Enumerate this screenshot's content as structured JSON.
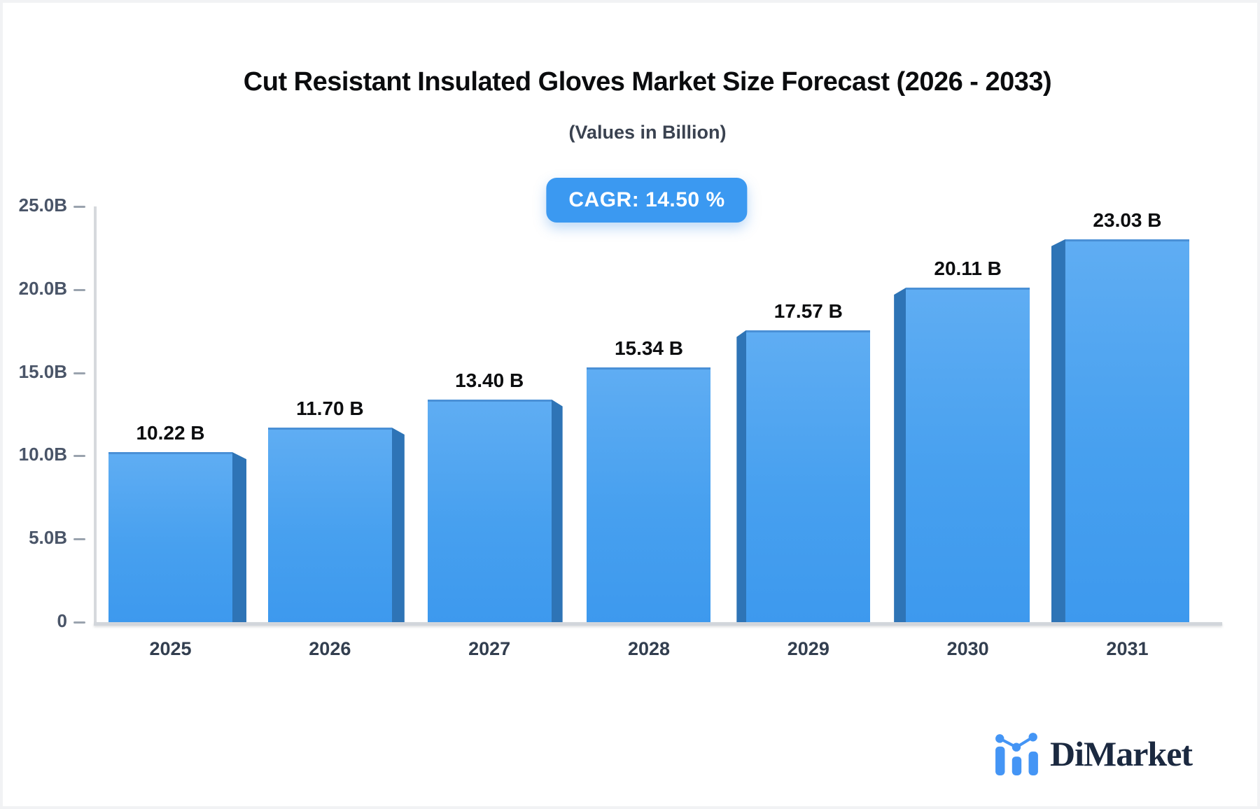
{
  "header": {
    "title": "Cut Resistant Insulated Gloves Market Size Forecast (2026 - 2033)",
    "subtitle": "(Values in Billion)",
    "cagr_badge": "CAGR: 14.50 %"
  },
  "chart_data": {
    "type": "bar",
    "title": "Cut Resistant Insulated Gloves Market Size Forecast (2026 - 2033)",
    "subtitle": "(Values in Billion)",
    "cagr_text": "CAGR: 14.50 %",
    "categories": [
      "2025",
      "2026",
      "2027",
      "2028",
      "2029",
      "2030",
      "2031"
    ],
    "values": [
      10.22,
      11.7,
      13.4,
      15.34,
      17.57,
      20.11,
      23.03
    ],
    "value_labels": [
      "10.22 B",
      "11.70 B",
      "13.40 B",
      "15.34 B",
      "17.57 B",
      "20.11 B",
      "23.03 B"
    ],
    "unit": "Billion",
    "y_ticks": [
      {
        "label": "25.0B",
        "value": 25
      },
      {
        "label": "20.0B",
        "value": 20
      },
      {
        "label": "15.0B",
        "value": 15
      },
      {
        "label": "10.0B",
        "value": 10
      },
      {
        "label": "5.0B",
        "value": 5
      },
      {
        "label": "0",
        "value": 0
      }
    ],
    "ylim": [
      0,
      25
    ],
    "grid": false,
    "legend": false,
    "bar_style": "3d",
    "colors": {
      "bar_face_top": "#5FADF3",
      "bar_face_bottom": "#3D99EE",
      "bar_top_edge": "#4A90D6",
      "bar_side": "#2E74B6",
      "axis_line": "#D6D9DD",
      "tick_label": "#4A5568",
      "x_label": "#323E4F",
      "value_label": "#0C0D0F",
      "badge_bg": "#3B99F1",
      "badge_text": "#FFFFFF"
    }
  },
  "footer": {
    "brand": "DiMarket",
    "brand_icon": "bar-line-chart-icon"
  }
}
